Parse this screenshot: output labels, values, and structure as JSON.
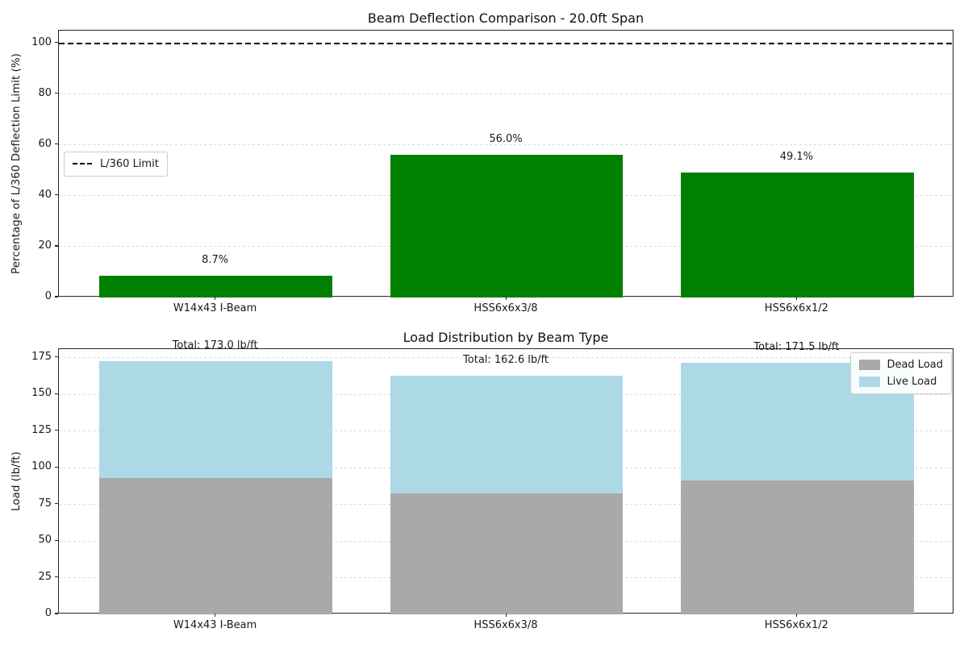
{
  "figure": {
    "background": "#ffffff"
  },
  "chart_data": [
    {
      "type": "bar",
      "title": "Beam Deflection Comparison - 20.0ft Span",
      "ylabel": "Percentage of L/360 Deflection Limit (%)",
      "xlabel": "",
      "categories": [
        "W14x43 I-Beam",
        "HSS6x6x3/8",
        "HSS6x6x1/2"
      ],
      "values": [
        8.7,
        56.0,
        49.1
      ],
      "bar_labels": [
        "8.7%",
        "56.0%",
        "49.1%"
      ],
      "bar_color": "#008000",
      "yticks": [
        0,
        20,
        40,
        60,
        80,
        100
      ],
      "ylim": [
        0,
        105
      ],
      "grid": "dashed-horizontal",
      "reference_line": {
        "value": 100,
        "label": "L/360 Limit",
        "color": "#000000",
        "style": "dashed"
      },
      "legend": {
        "position": "center-left",
        "entries": [
          {
            "label": "L/360 Limit",
            "swatch_type": "dashed-line",
            "color": "#000000"
          }
        ]
      }
    },
    {
      "type": "bar",
      "stacked": true,
      "title": "Load Distribution by Beam Type",
      "ylabel": "Load (lb/ft)",
      "xlabel": "",
      "categories": [
        "W14x43 I-Beam",
        "HSS6x6x3/8",
        "HSS6x6x1/2"
      ],
      "series": [
        {
          "name": "Dead Load",
          "color": "#a9a9a9",
          "values": [
            93.0,
            82.6,
            91.5
          ]
        },
        {
          "name": "Live Load",
          "color": "#add8e6",
          "values": [
            80.0,
            80.0,
            80.0
          ]
        }
      ],
      "totals": [
        173.0,
        162.6,
        171.5
      ],
      "total_labels": [
        "Total: 173.0 lb/ft",
        "Total: 162.6 lb/ft",
        "Total: 171.5 lb/ft"
      ],
      "yticks": [
        0,
        25,
        50,
        75,
        100,
        125,
        150,
        175
      ],
      "ylim": [
        0,
        181
      ],
      "grid": "dashed-horizontal",
      "legend": {
        "position": "upper-right",
        "entries": [
          {
            "label": "Dead Load",
            "swatch_type": "rect",
            "color": "#a9a9a9"
          },
          {
            "label": "Live Load",
            "swatch_type": "rect",
            "color": "#add8e6"
          }
        ]
      }
    }
  ]
}
